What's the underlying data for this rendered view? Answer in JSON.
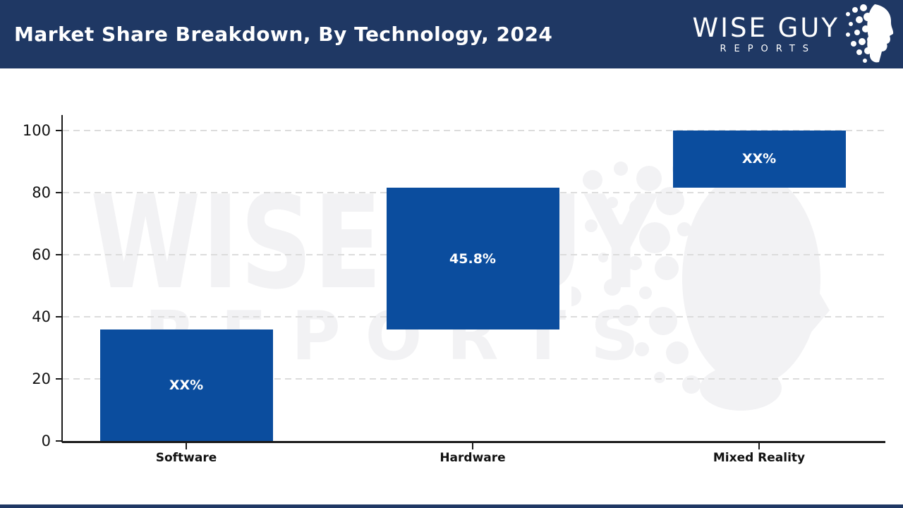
{
  "header": {
    "title": "Market Share Breakdown, By Technology, 2024",
    "logo": {
      "wordmark": "WISE GUY",
      "subtext": "REPORTS"
    }
  },
  "watermark": {
    "line1": "WISE GUY",
    "line2": "REPORTS"
  },
  "colors": {
    "header_bg": "#1f3864",
    "footer_bg": "#1f3864",
    "bar": "#0b4d9e",
    "grid": "#dcdcdc",
    "axis": "#1a1a1a",
    "tick_text": "#111111",
    "bar_label_text": "#ffffff",
    "watermark": "#f2f2f4"
  },
  "chart_data": {
    "type": "bar",
    "subtype": "floating-waterfall",
    "title": "Market Share Breakdown, By Technology, 2024",
    "categories": [
      "Software",
      "Hardware",
      "Mixed Reality"
    ],
    "segments": [
      {
        "category": "Software",
        "start": 0,
        "end": 35.8,
        "value": 35.8,
        "label": "XX%"
      },
      {
        "category": "Hardware",
        "start": 35.8,
        "end": 81.6,
        "value": 45.8,
        "label": "45.8%"
      },
      {
        "category": "Mixed Reality",
        "start": 81.6,
        "end": 100,
        "value": 18.4,
        "label": "XX%"
      }
    ],
    "xlabel": "",
    "ylabel": "",
    "ylim": [
      0,
      100
    ],
    "yticks": [
      0,
      20,
      40,
      60,
      80,
      100
    ],
    "grid": "horizontal-dashed",
    "legend": "none"
  }
}
